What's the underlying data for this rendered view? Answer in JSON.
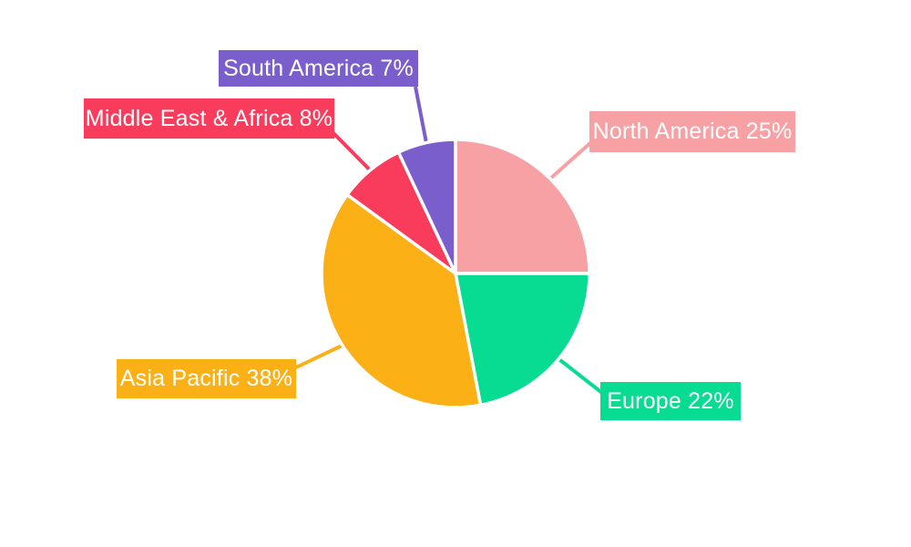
{
  "chart_data": {
    "type": "pie",
    "title": "",
    "unit": "%",
    "direction": "clockwise",
    "start_angle_deg": 0,
    "legend_position": "callout-labels",
    "background_color": "#FFFFFF",
    "label_text_color": "#FFFFFF",
    "slice_gap_color": "#FFFFFF",
    "categories": [
      "North America",
      "Europe",
      "Asia Pacific",
      "Middle East & Africa",
      "South America"
    ],
    "values": [
      25,
      22,
      38,
      8,
      7
    ],
    "slices": [
      {
        "label": "North America",
        "value": 25,
        "display": "North America 25%",
        "color": "#F8A1A5"
      },
      {
        "label": "Europe",
        "value": 22,
        "display": "Europe 22%",
        "color": "#08DC92"
      },
      {
        "label": "Asia Pacific",
        "value": 38,
        "display": "Asia Pacific 38%",
        "color": "#FBB016"
      },
      {
        "label": "Middle East & Africa",
        "value": 8,
        "display": "Middle East & Africa 8%",
        "color": "#F93B5C"
      },
      {
        "label": "South America",
        "value": 7,
        "display": "South America 7%",
        "color": "#7A5ECB"
      }
    ]
  }
}
